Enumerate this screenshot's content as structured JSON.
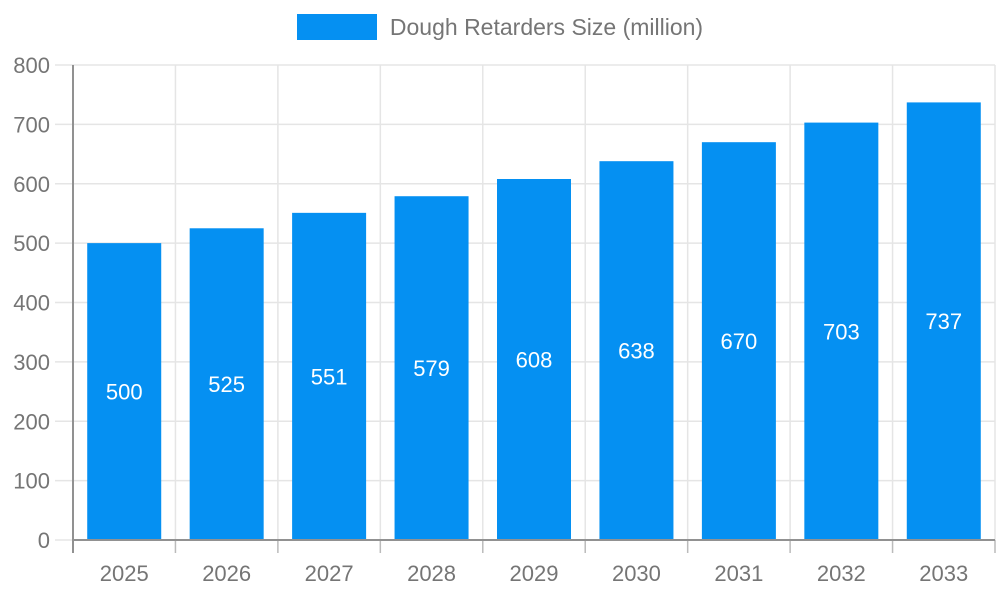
{
  "chart_data": {
    "type": "bar",
    "title": "",
    "series_name": "Dough Retarders Size (million)",
    "categories": [
      "2025",
      "2026",
      "2027",
      "2028",
      "2029",
      "2030",
      "2031",
      "2032",
      "2033"
    ],
    "values": [
      500,
      525,
      551,
      579,
      608,
      638,
      670,
      703,
      737
    ],
    "xlabel": "",
    "ylabel": "",
    "ylim": [
      0,
      800
    ],
    "ytick_step": 100,
    "ytick_labels": [
      "0",
      "100",
      "200",
      "300",
      "400",
      "500",
      "600",
      "700",
      "800"
    ],
    "grid": true,
    "legend_position": "top-center",
    "value_labels_position": "inside-middle",
    "colors": {
      "bar": "#0590f2",
      "value_label": "#ffffff",
      "axis_text": "#757575",
      "legend_text": "#757575",
      "axis_line": "#919191",
      "grid_line": "#e5e5e5",
      "x_tick": "#bbbbbb",
      "background": "#ffffff"
    }
  }
}
